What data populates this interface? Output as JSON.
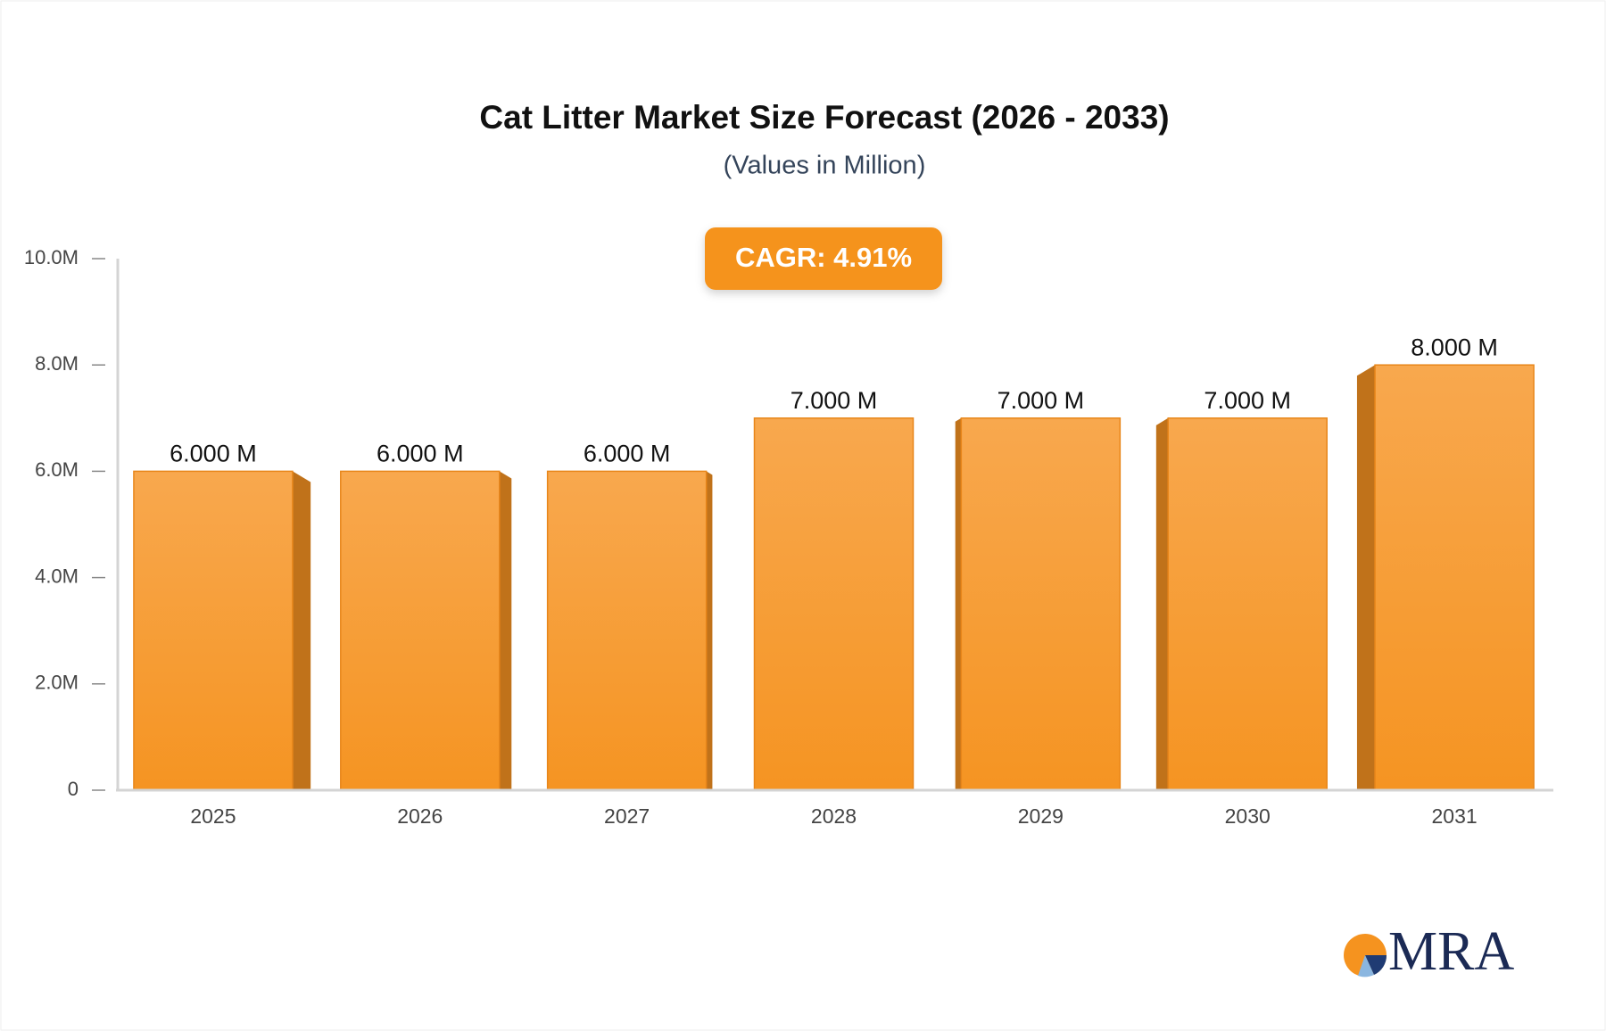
{
  "chart_data": {
    "type": "bar",
    "title": "Cat Litter Market Size Forecast (2026 - 2033)",
    "subtitle": "(Values in Million)",
    "annotation": "CAGR: 4.91%",
    "logo": "MRA",
    "categories": [
      "2025",
      "2026",
      "2027",
      "2028",
      "2029",
      "2030",
      "2031"
    ],
    "values": [
      6,
      6,
      6,
      7,
      7,
      7,
      8
    ],
    "value_labels": [
      "6.000 M",
      "6.000 M",
      "6.000 M",
      "7.000 M",
      "7.000 M",
      "7.000 M",
      "8.000 M"
    ],
    "color": "#f7a040",
    "ylim": [
      0,
      10
    ],
    "yticks": [
      0,
      {
        "value": 2,
        "label": "2.0M"
      },
      {
        "value": 4,
        "label": "4.0M"
      },
      {
        "value": 6,
        "label": "6.0M"
      },
      {
        "value": 8,
        "label": "8.0M"
      },
      {
        "value": 10,
        "label": "10.0M"
      }
    ],
    "grid": false
  }
}
